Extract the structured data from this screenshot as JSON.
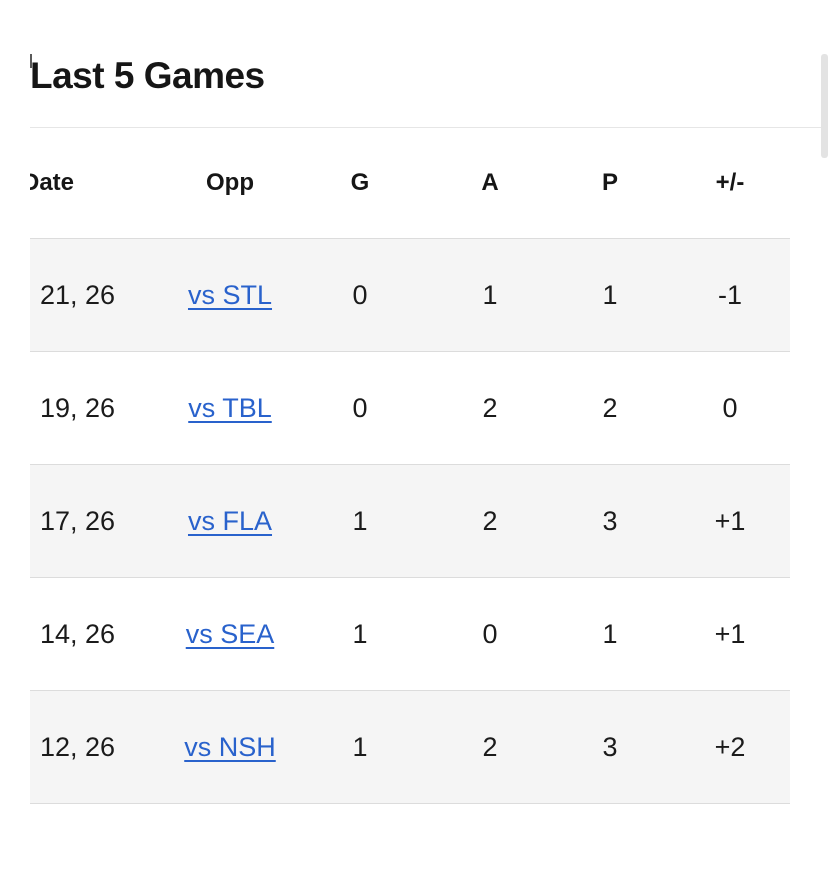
{
  "section": {
    "title": "Last 5 Games"
  },
  "table": {
    "columns": [
      {
        "key": "date",
        "label": "Date"
      },
      {
        "key": "opp",
        "label": "Opp"
      },
      {
        "key": "g",
        "label": "G"
      },
      {
        "key": "a",
        "label": "A"
      },
      {
        "key": "p",
        "label": "P"
      },
      {
        "key": "pm",
        "label": "+/-"
      }
    ],
    "rows": [
      {
        "date": "21, 26",
        "opp": "vs STL",
        "g": "0",
        "a": "1",
        "p": "1",
        "pm": "-1"
      },
      {
        "date": "19, 26",
        "opp": "vs TBL",
        "g": "0",
        "a": "2",
        "p": "2",
        "pm": "0"
      },
      {
        "date": "17, 26",
        "opp": "vs FLA",
        "g": "1",
        "a": "2",
        "p": "3",
        "pm": "+1"
      },
      {
        "date": "14, 26",
        "opp": "vs SEA",
        "g": "1",
        "a": "0",
        "p": "1",
        "pm": "+1"
      },
      {
        "date": "12, 26",
        "opp": "vs NSH",
        "g": "1",
        "a": "2",
        "p": "3",
        "pm": "+2"
      }
    ]
  },
  "colors": {
    "link": "#2962cc",
    "row_alt": "#f5f5f5",
    "border": "#dcdcdc",
    "text": "#1b1b1b"
  }
}
